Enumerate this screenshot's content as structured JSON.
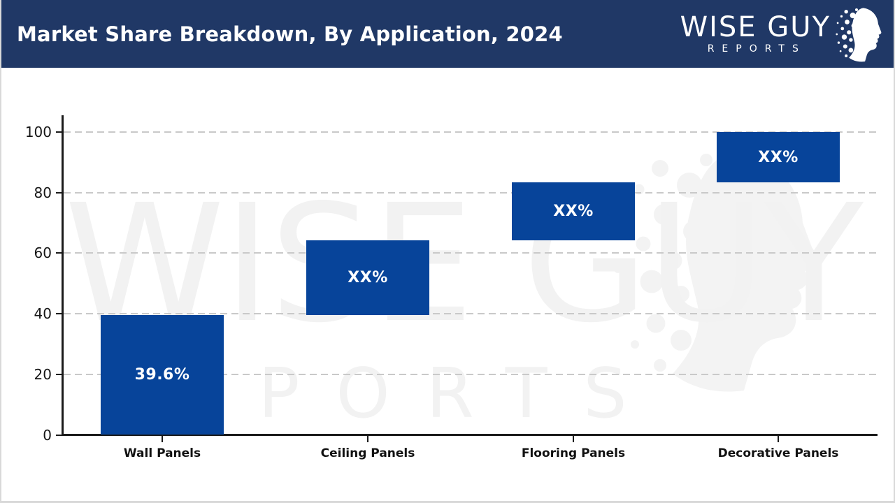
{
  "header": {
    "title": "Market Share Breakdown, By Application, 2024",
    "logo": {
      "name": "WISE GUY",
      "sub": "REPORTS"
    }
  },
  "watermark": {
    "line1": "WISE GUY",
    "line2": "REPORTS"
  },
  "chart_data": {
    "type": "bar",
    "subtype": "waterfall",
    "title": "Market Share Breakdown, By Application, 2024",
    "categories": [
      "Wall Panels",
      "Ceiling Panels",
      "Flooring Panels",
      "Decorative Panels"
    ],
    "bars": [
      {
        "category": "Wall Panels",
        "start": 0,
        "end": 39.6,
        "label": "39.6%"
      },
      {
        "category": "Ceiling Panels",
        "start": 39.6,
        "end": 64.2,
        "label": "XX%"
      },
      {
        "category": "Flooring Panels",
        "start": 64.2,
        "end": 83.3,
        "label": "XX%"
      },
      {
        "category": "Decorative Panels",
        "start": 83.3,
        "end": 100,
        "label": "XX%"
      }
    ],
    "xlabel": "",
    "ylabel": "",
    "ylim": [
      0,
      100
    ],
    "yticks": [
      0,
      20,
      40,
      60,
      80,
      100
    ],
    "grid": "horizontal-dashed",
    "legend": "none",
    "colors": {
      "bar": "#07449a",
      "bar_label": "#ffffff",
      "axis": "#1a1a1a",
      "gridline": "#c9c9c9",
      "header_bg": "#203866",
      "watermark": "#f2f2f2"
    }
  }
}
